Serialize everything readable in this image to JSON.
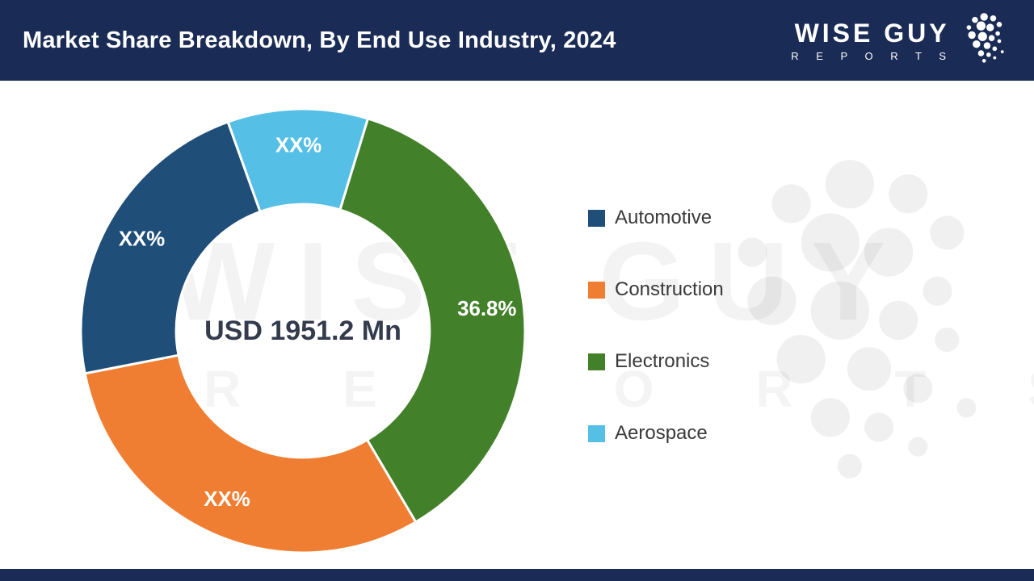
{
  "header": {
    "title": "Market Share Breakdown, By End Use Industry, 2024",
    "logo": {
      "line1": "WISE GUY",
      "line2": "R E P O R T S"
    }
  },
  "watermark": {
    "line1": "WISE GUY",
    "line2": "R E P O R T S"
  },
  "chart_data": {
    "type": "pie",
    "variant": "donut",
    "title": "Market Share Breakdown, By End Use Industry, 2024",
    "center_label": "USD 1951.2 Mn",
    "start_angle_deg": 17,
    "legend_position": "right",
    "segments": [
      {
        "label": "Electronics",
        "display": "36.8%",
        "value": 36.8,
        "color": "#43802a"
      },
      {
        "label": "Construction",
        "display": "XX%",
        "value": 30.4,
        "color": "#ef7e32"
      },
      {
        "label": "Automotive",
        "display": "XX%",
        "value": 22.6,
        "color": "#1f4e79"
      },
      {
        "label": "Aerospace",
        "display": "XX%",
        "value": 10.2,
        "color": "#56bfe6"
      }
    ]
  },
  "legend": {
    "items": [
      {
        "label": "Automotive",
        "color": "#1f4e79"
      },
      {
        "label": "Construction",
        "color": "#ef7e32"
      },
      {
        "label": "Electronics",
        "color": "#43802a"
      },
      {
        "label": "Aerospace",
        "color": "#56bfe6"
      }
    ]
  },
  "colors": {
    "header_bg": "#1a2c55",
    "accent_navy": "#1f4e79",
    "accent_orange": "#ef7e32",
    "accent_green": "#43802a",
    "accent_lightblue": "#56bfe6"
  }
}
